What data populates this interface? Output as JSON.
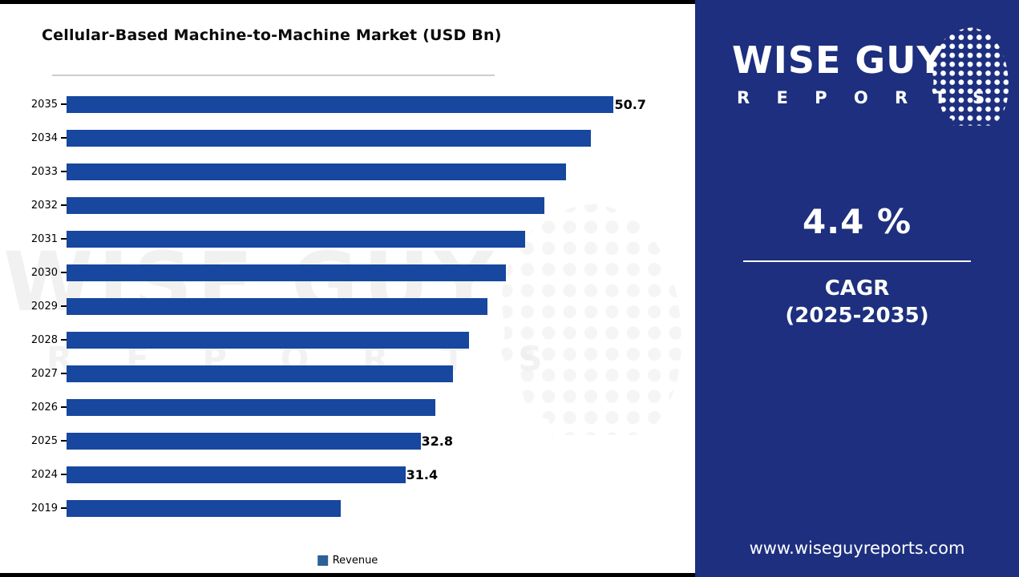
{
  "chart": {
    "title": "Cellular-Based Machine-to-Machine Market (USD Bn)",
    "legend": {
      "label": "Revenue",
      "color": "#2d6096"
    },
    "watermark": {
      "line1": "WISE GUY",
      "line2": "R E P O R T S"
    }
  },
  "chart_data": {
    "type": "bar",
    "orientation": "horizontal",
    "title": "Cellular-Based Machine-to-Machine Market (USD Bn)",
    "series_name": "Revenue",
    "categories": [
      "2035",
      "2034",
      "2033",
      "2032",
      "2031",
      "2030",
      "2029",
      "2028",
      "2027",
      "2026",
      "2025",
      "2024",
      "2019"
    ],
    "values": [
      50.7,
      48.6,
      46.3,
      44.3,
      42.5,
      40.7,
      39.0,
      37.3,
      35.8,
      34.2,
      32.8,
      31.4,
      25.4
    ],
    "value_labels": [
      "50.7",
      "",
      "",
      "",
      "",
      "",
      "",
      "",
      "",
      "",
      "32.8",
      "31.4",
      ""
    ],
    "labeled_values": {
      "2035": 50.7,
      "2025": 32.8,
      "2024": 31.4
    },
    "bar_color": "#17479e",
    "xlim": [
      0,
      57.5
    ],
    "grid": false,
    "legend_position": "bottom"
  },
  "sidebar": {
    "background": "#1d2f7e",
    "logo_line1": "WISE GUY",
    "logo_line2": "R E P O R T S",
    "cagr_value": "4.4 %",
    "cagr_label": "CAGR",
    "cagr_period": "(2025-2035)",
    "website": "www.wiseguyreports.com"
  }
}
